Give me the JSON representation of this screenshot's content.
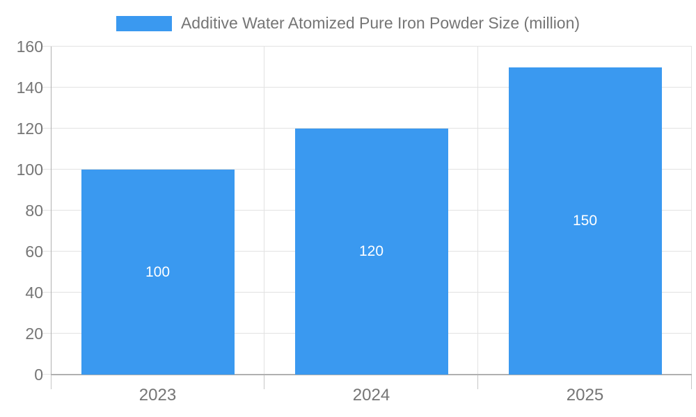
{
  "legend": {
    "label": "Additive Water Atomized Pure Iron Powder Size (million)"
  },
  "chart_data": {
    "type": "bar",
    "title": "Additive Water Atomized Pure Iron Powder Size (million)",
    "categories": [
      "2023",
      "2024",
      "2025"
    ],
    "values": [
      100,
      120,
      150
    ],
    "bar_labels": [
      "100",
      "120",
      "150"
    ],
    "xlabel": "",
    "ylabel": "",
    "ylim": [
      0,
      160
    ],
    "yticks": [
      0,
      20,
      40,
      60,
      80,
      100,
      120,
      140,
      160
    ],
    "grid": true,
    "legend_position": "top-center",
    "colors": {
      "bar": "#3a99f0",
      "bar_label_text": "#ffffff",
      "axis_text": "#757575",
      "gridline": "#e2e2e2",
      "axis_line": "#b0b0b0",
      "background": "#ffffff"
    }
  }
}
